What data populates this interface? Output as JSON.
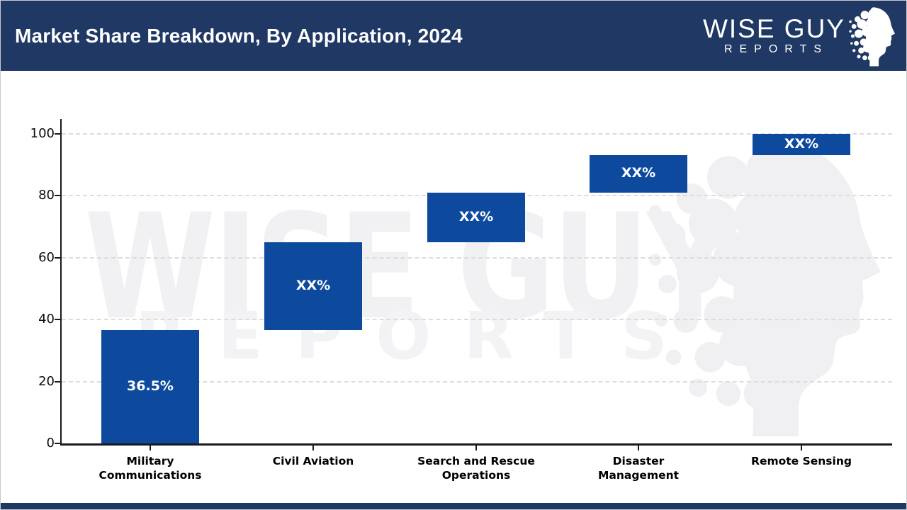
{
  "header": {
    "title": "Market Share Breakdown, By Application, 2024",
    "logo": {
      "name": "WISE GUY",
      "sub": "REPORTS"
    }
  },
  "watermark": {
    "line1": "WISE GUY",
    "line2": "REPORTS"
  },
  "colors": {
    "header_navy": "#1f3864",
    "bar_blue": "#0d4a9e",
    "bar_label_white": "#ffffff"
  },
  "chart_data": {
    "type": "bar",
    "subtype": "waterfall",
    "title": "Market Share Breakdown, By Application, 2024",
    "categories": [
      "Military Communications",
      "Civil Aviation",
      "Search and Rescue Operations",
      "Disaster Management",
      "Remote Sensing"
    ],
    "category_lines": [
      [
        "Military",
        "Communications"
      ],
      [
        "Civil Aviation"
      ],
      [
        "Search and Rescue",
        "Operations"
      ],
      [
        "Disaster",
        "Management"
      ],
      [
        "Remote Sensing"
      ]
    ],
    "segments": [
      {
        "category": "Military Communications",
        "start": 0,
        "end": 36.5,
        "label": "36.5%"
      },
      {
        "category": "Civil Aviation",
        "start": 36.5,
        "end": 65,
        "label": "XX%"
      },
      {
        "category": "Search and Rescue Operations",
        "start": 65,
        "end": 81,
        "label": "XX%"
      },
      {
        "category": "Disaster Management",
        "start": 81,
        "end": 93,
        "label": "XX%"
      },
      {
        "category": "Remote Sensing",
        "start": 93,
        "end": 100,
        "label": "XX%"
      }
    ],
    "ylim": [
      0,
      100
    ],
    "yticks": [
      0,
      20,
      40,
      60,
      80,
      100
    ],
    "xlabel": "",
    "ylabel": "",
    "grid": "horizontal-dashed",
    "legend": "none",
    "bar_color": "#0d4a9e",
    "bar_label_color": "#ffffff"
  }
}
